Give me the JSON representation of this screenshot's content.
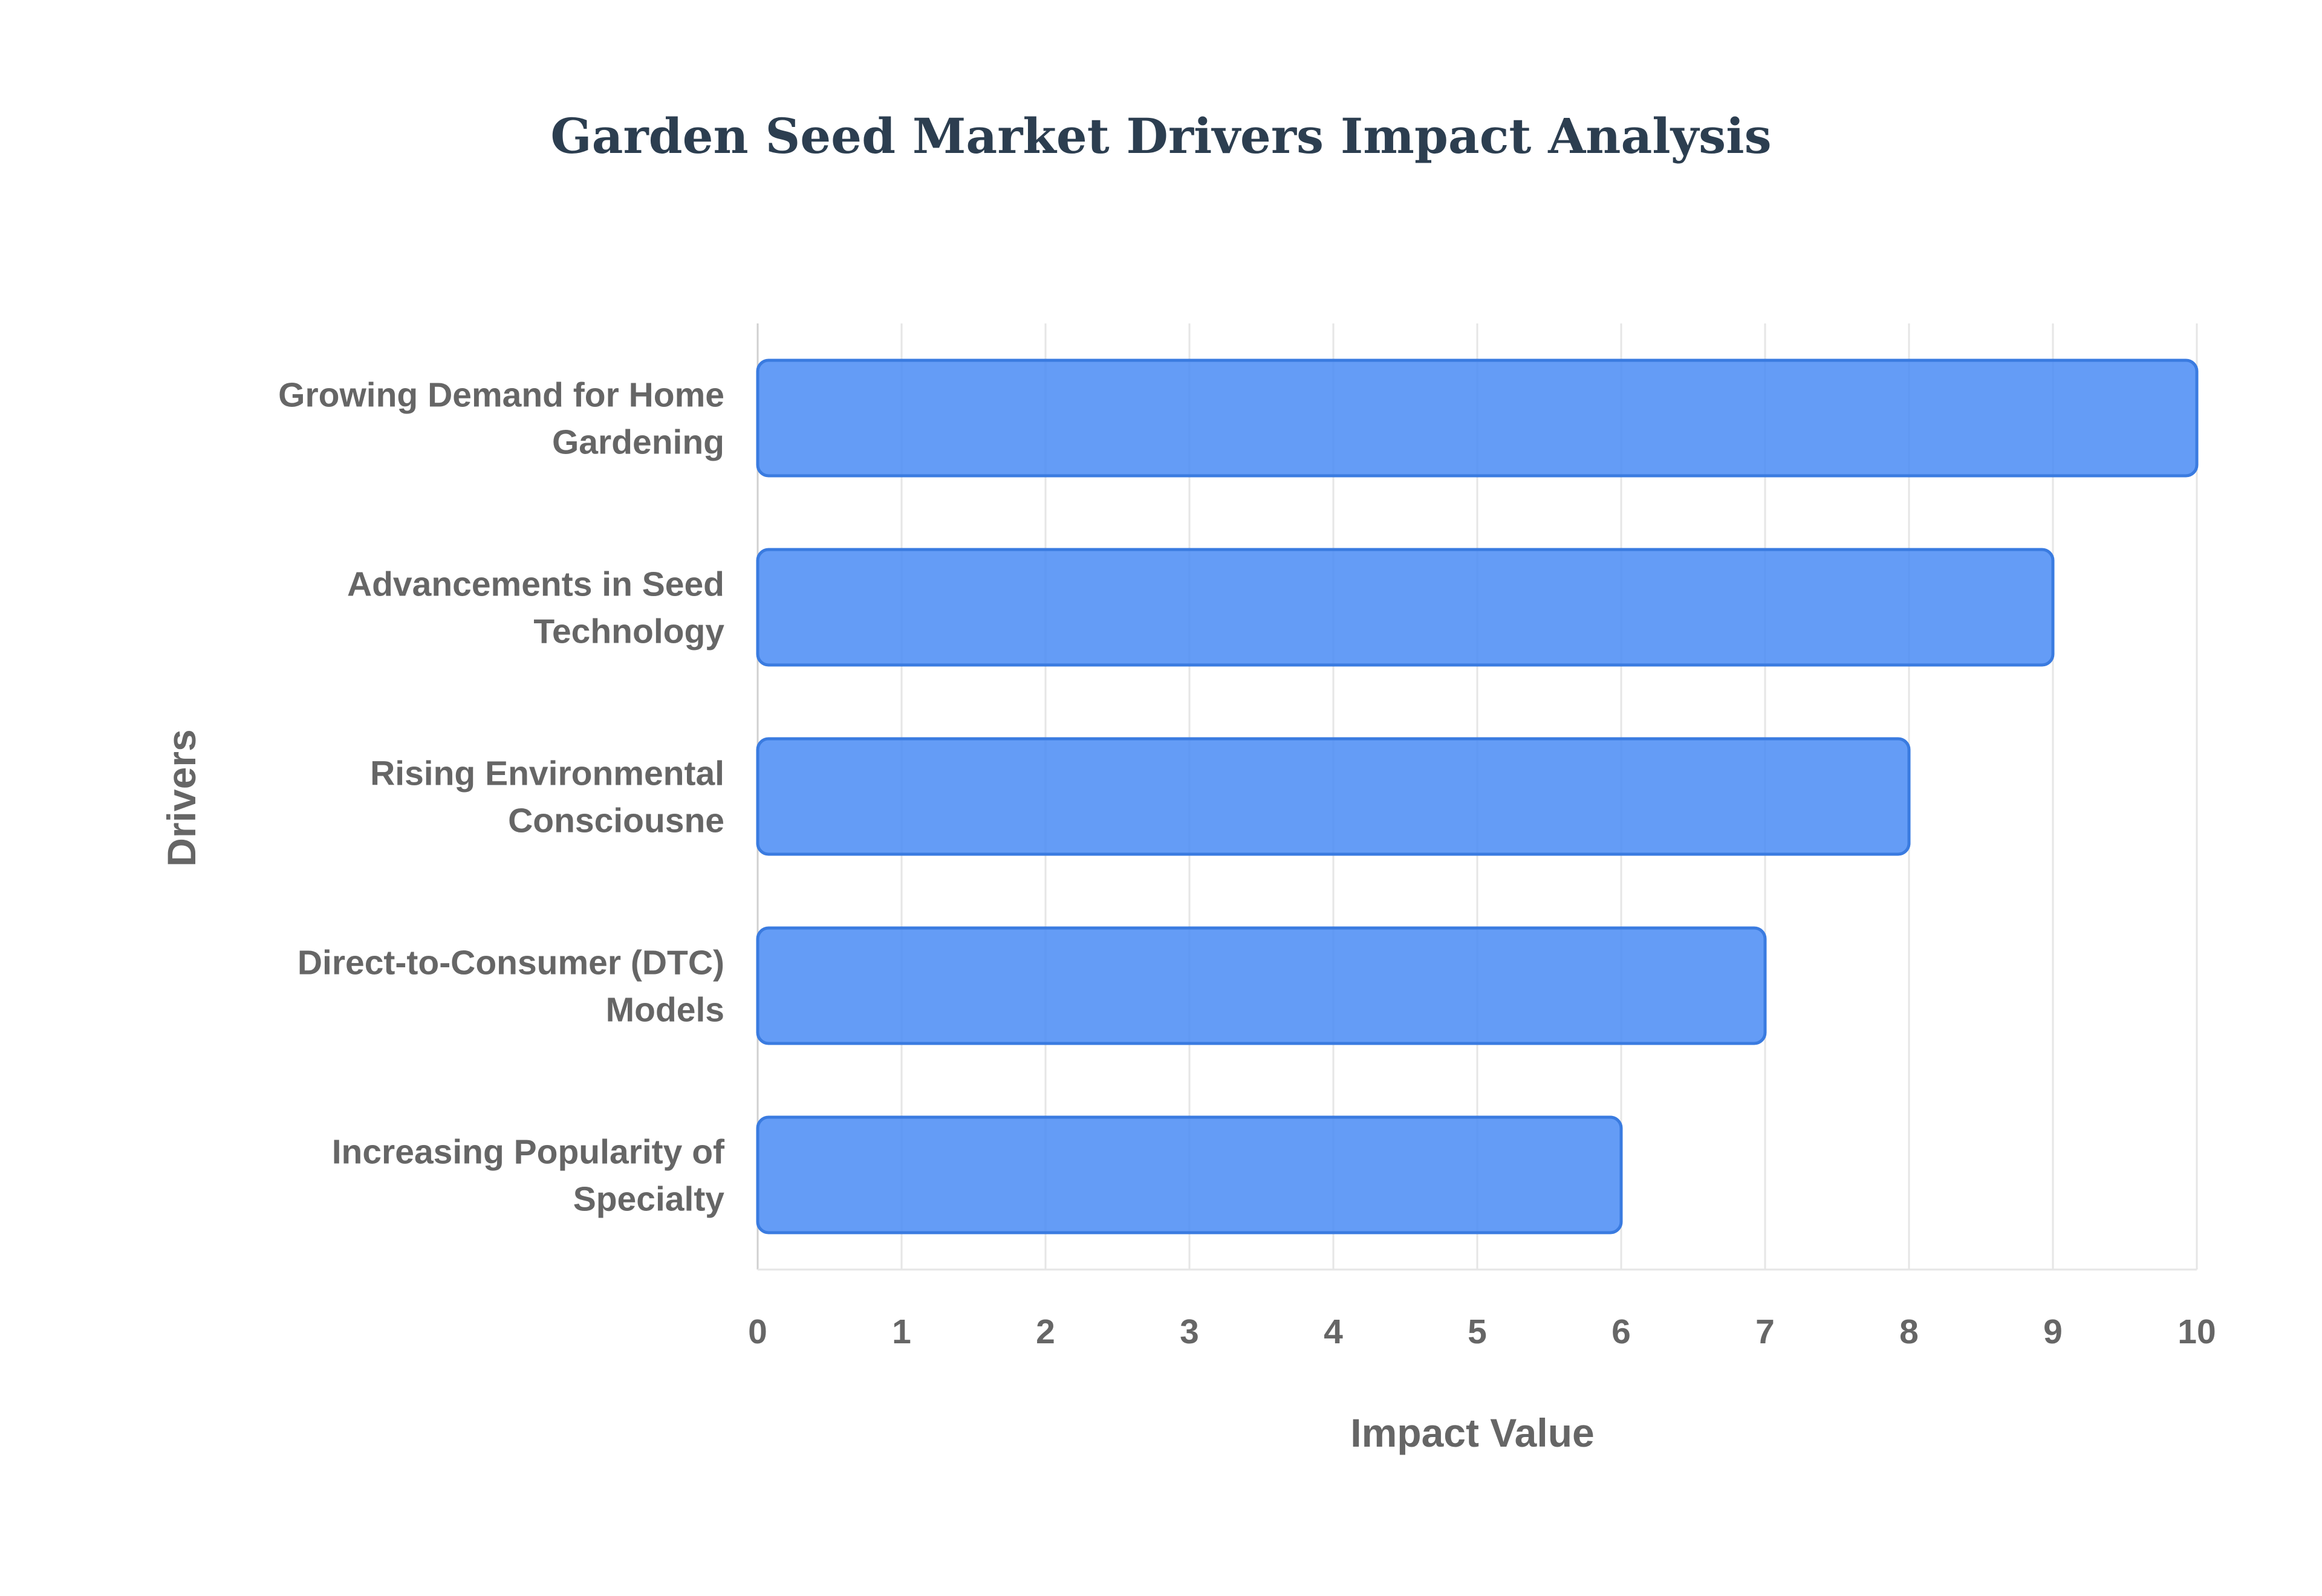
{
  "chart_data": {
    "type": "bar",
    "orientation": "horizontal",
    "title": "Garden Seed Market Drivers Impact Analysis",
    "xlabel": "Impact Value",
    "ylabel": "Drivers",
    "xlim": [
      0,
      10
    ],
    "x_ticks": [
      0,
      1,
      2,
      3,
      4,
      5,
      6,
      7,
      8,
      9,
      10
    ],
    "grid": true,
    "legend": "none",
    "categories": [
      [
        "Growing Demand for Home",
        "Gardening"
      ],
      [
        "Advancements in Seed",
        "Technology"
      ],
      [
        "Rising Environmental",
        "Consciousne"
      ],
      [
        "Direct-to-Consumer (DTC)",
        "Models"
      ],
      [
        "Increasing Popularity of",
        "Specialty"
      ]
    ],
    "values": [
      10,
      9,
      8,
      7,
      6
    ],
    "colors": {
      "bar_fill": "#4f8ef5",
      "bar_stroke": "#3a7be0"
    }
  }
}
